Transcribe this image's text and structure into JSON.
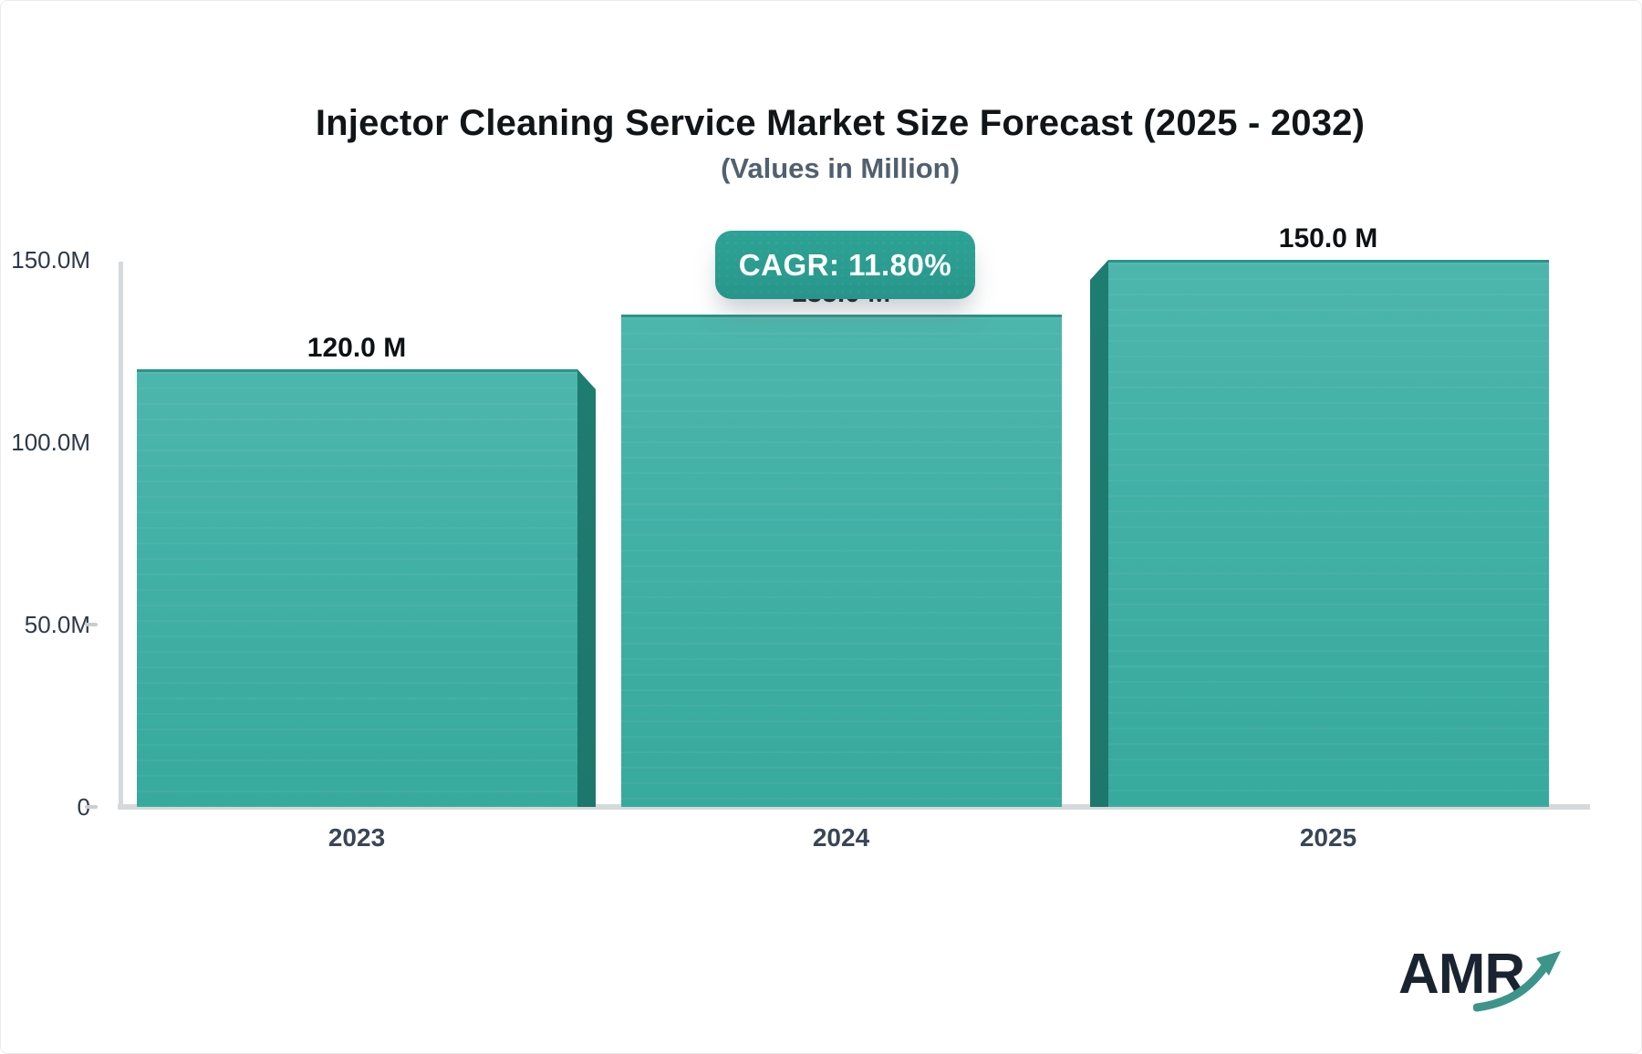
{
  "cagr_badge": "CAGR: 11.80%",
  "logo": {
    "text": "AMR"
  },
  "colors": {
    "title_text": "#111518",
    "subtitle_text": "#51606e",
    "tick_label": "#2d3a49",
    "category_label": "#394656",
    "value_label": "#0e1113",
    "axis_line": "#d6d9db",
    "bar_face_top": "#4db6ac",
    "bar_face_bottom": "#38a99d",
    "bar_top_edge": "#2a9488",
    "bar_side": "#1f7c70",
    "badge_bg": "#2a9c8f",
    "logo_text": "#1a2430",
    "logo_arrow": "#3d948a"
  },
  "chart_data": {
    "type": "bar",
    "title": "Injector Cleaning Service Market Size Forecast (2025 - 2032)",
    "subtitle": "(Values in Million)",
    "categories": [
      "2023",
      "2024",
      "2025"
    ],
    "values": [
      120,
      135,
      150
    ],
    "value_labels": [
      "120.0 M",
      "135.0 M",
      "150.0 M"
    ],
    "series_unit": "Million",
    "xlabel": "",
    "ylabel": "",
    "ylim": [
      0,
      150
    ],
    "y_ticks": [
      0,
      50,
      100,
      150
    ],
    "y_tick_labels": [
      "0",
      "50.0M",
      "100.0M",
      "150.0M"
    ],
    "grid": false,
    "legend": false,
    "annotations": [
      "CAGR: 11.80%"
    ],
    "bar_style": "3d-extruded-teal"
  }
}
